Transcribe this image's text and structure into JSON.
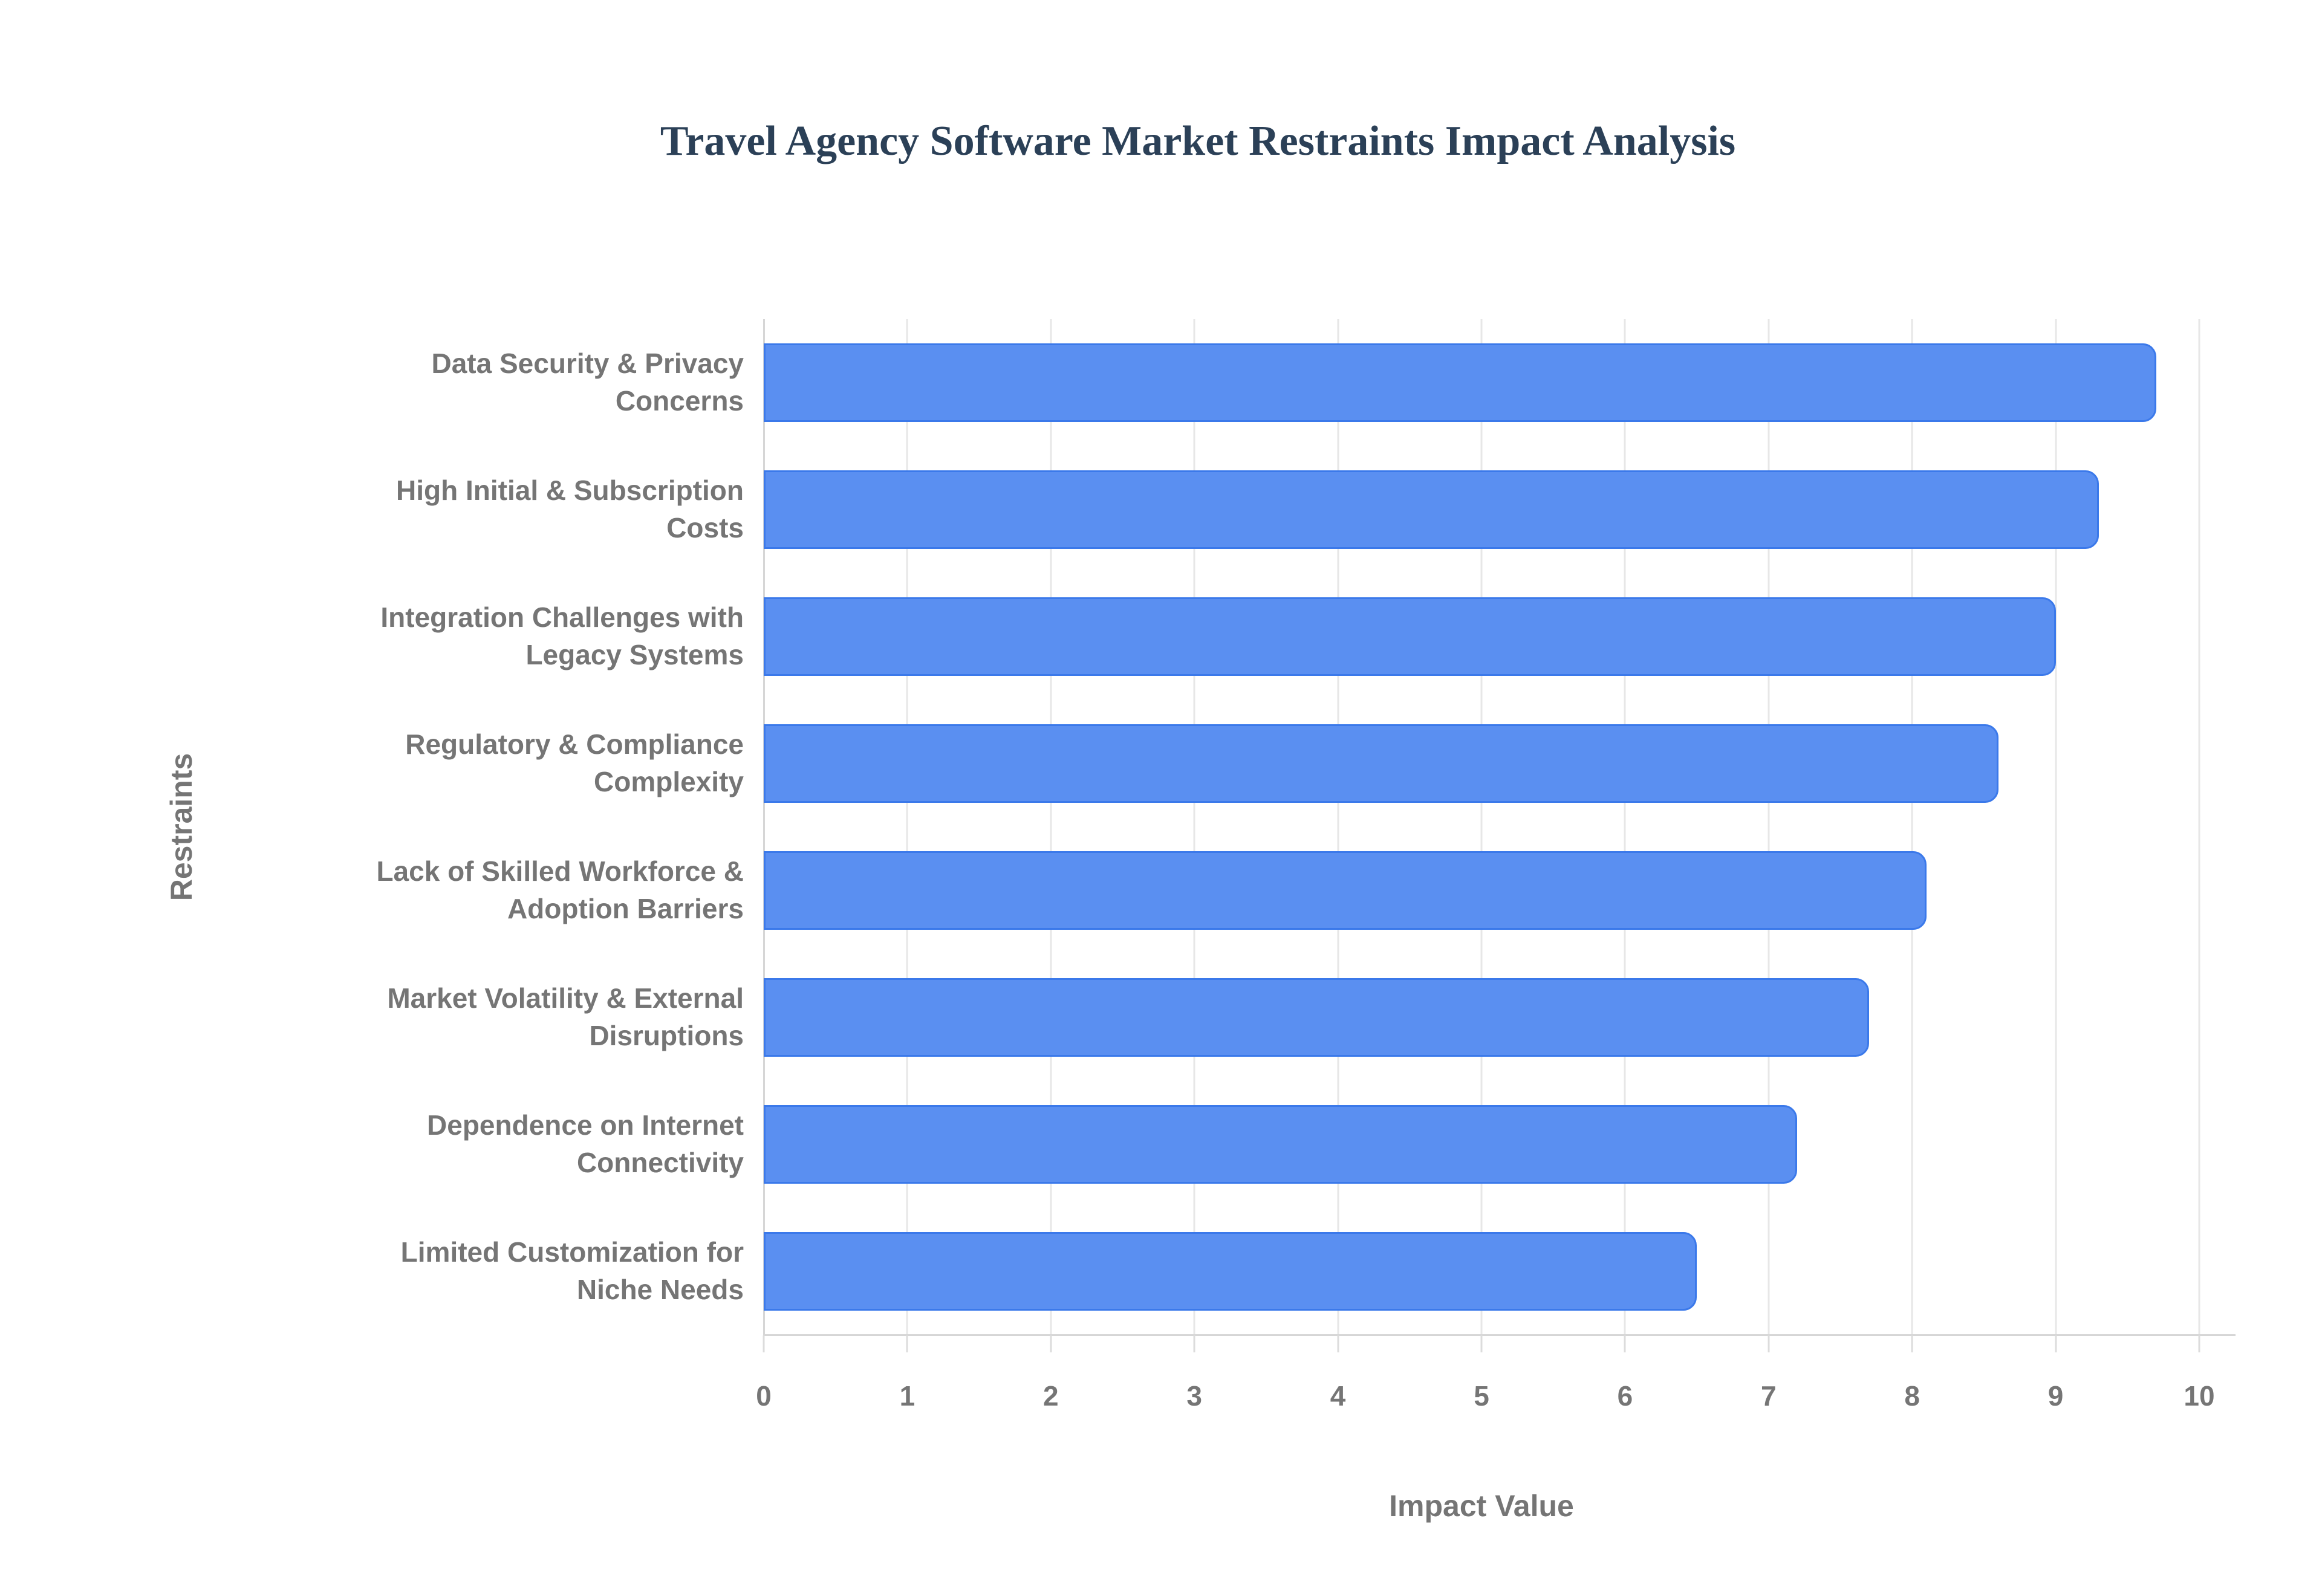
{
  "page": {
    "background": "#ffffff"
  },
  "chart_data": {
    "type": "bar",
    "orientation": "horizontal",
    "title": "Travel Agency Software Market Restraints Impact Analysis",
    "categories": [
      "Data Security & Privacy\nConcerns",
      "High Initial & Subscription\nCosts",
      "Integration Challenges with\nLegacy Systems",
      "Regulatory & Compliance\nComplexity",
      "Lack of Skilled Workforce &\nAdoption Barriers",
      "Market Volatility & External\nDisruptions",
      "Dependence on Internet\nConnectivity",
      "Limited Customization for\nNiche Needs"
    ],
    "values": [
      9.7,
      9.3,
      9.0,
      8.6,
      8.1,
      7.7,
      7.2,
      6.5
    ],
    "xlabel": "Impact Value",
    "ylabel": "Restraints",
    "xlim": [
      0,
      10
    ],
    "xticks": [
      0,
      1,
      2,
      3,
      4,
      5,
      6,
      7,
      8,
      9,
      10
    ],
    "grid": "vertical-only",
    "legend": "none",
    "colors": {
      "bar_fill": "#5a8ff1",
      "bar_border": "#3b79ea",
      "gridline": "#e7e7e7",
      "axis_line": "#d6d6d6",
      "label_text": "#757575",
      "title_text": "#2b4057"
    }
  }
}
